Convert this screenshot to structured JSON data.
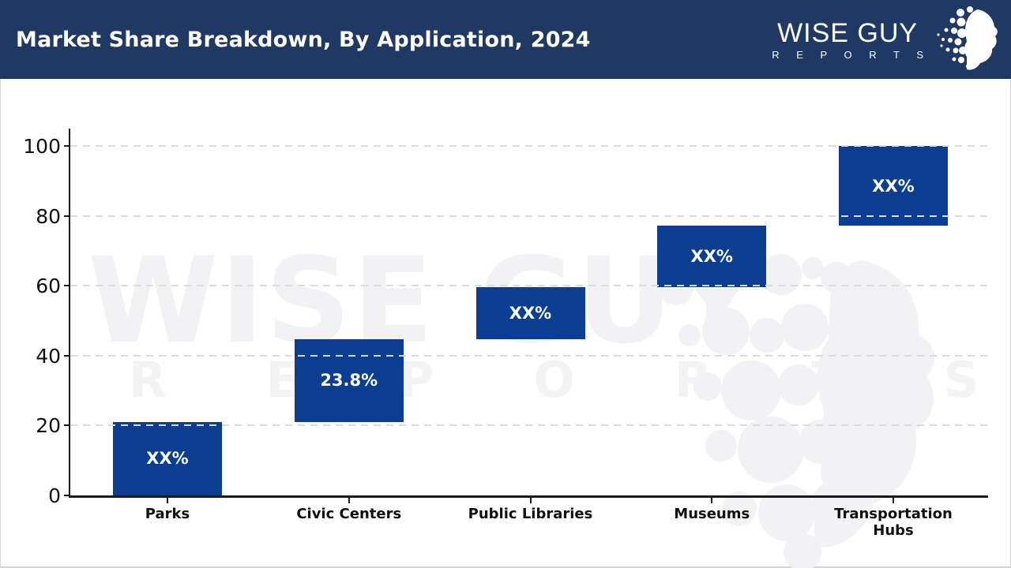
{
  "header": {
    "title": "Market Share Breakdown, By Application, 2024",
    "logo": {
      "line1": "WISE GUY",
      "line2": "REPORTS"
    }
  },
  "watermark": {
    "line1": "WISE GUY",
    "line2": "REPORTS"
  },
  "colors": {
    "header_bg": "#1f3864",
    "bar": "#0b3d91",
    "value_label": "#ffffff",
    "grid": "#dcdcdc",
    "axis": "#1a1a1a",
    "watermark": "#f2f2f4"
  },
  "chart_data": {
    "type": "bar",
    "subtype": "waterfall",
    "title": "Market Share Breakdown, By Application, 2024",
    "categories": [
      "Parks",
      "Civic Centers",
      "Public Libraries",
      "Museums",
      "Transportation Hubs"
    ],
    "segments": [
      {
        "category": "Parks",
        "start": 0,
        "end": 21,
        "label": "XX%"
      },
      {
        "category": "Civic Centers",
        "start": 21,
        "end": 44.8,
        "label": "23.8%"
      },
      {
        "category": "Public Libraries",
        "start": 44.8,
        "end": 59.6,
        "label": "XX%"
      },
      {
        "category": "Museums",
        "start": 59.6,
        "end": 77.2,
        "label": "XX%"
      },
      {
        "category": "Transportation Hubs",
        "start": 77.2,
        "end": 100,
        "label": "XX%"
      }
    ],
    "yticks": [
      0,
      20,
      40,
      60,
      80,
      100
    ],
    "ylim": [
      0,
      105
    ],
    "xlabel": "",
    "ylabel": "",
    "grid": "horizontal-dashed",
    "legend": "none"
  }
}
